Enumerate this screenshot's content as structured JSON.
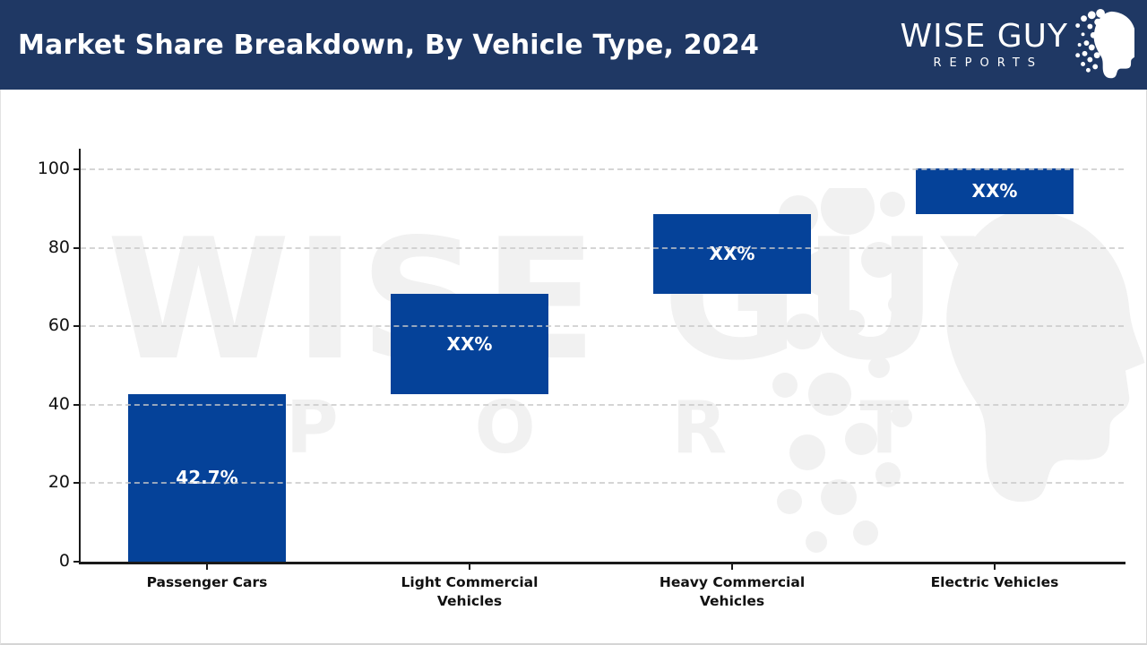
{
  "header": {
    "title": "Market Share Breakdown, By Vehicle Type, 2024",
    "logo": {
      "line1": "WISE GUY",
      "line2": "REPORTS"
    },
    "background": "#1f3864"
  },
  "watermark": {
    "line1": "WISE GUY",
    "line2": "PORTS"
  },
  "chart_data": {
    "type": "bar",
    "subtype": "waterfall-floating-segments",
    "title": "Market Share Breakdown, By Vehicle Type, 2024",
    "categories": [
      "Passenger Cars",
      "Light Commercial\nVehicles",
      "Heavy Commercial\nVehicles",
      "Electric Vehicles"
    ],
    "segments": [
      {
        "from": 0,
        "to": 42.7,
        "label": "42.7%"
      },
      {
        "from": 42.7,
        "to": 68.3,
        "label": "XX%"
      },
      {
        "from": 68.3,
        "to": 88.6,
        "label": "XX%"
      },
      {
        "from": 88.6,
        "to": 100.3,
        "label": "XX%"
      }
    ],
    "yticks": [
      0,
      20,
      40,
      60,
      80,
      100
    ],
    "ylim": [
      0,
      105
    ],
    "xlabel": "",
    "ylabel": "",
    "grid": "horizontal-dashed",
    "legend": "none",
    "bar_color": "#054299",
    "bar_label_color": "#ffffff",
    "grid_color": "#c8c8c8",
    "axis_color": "#1a1a1a"
  }
}
